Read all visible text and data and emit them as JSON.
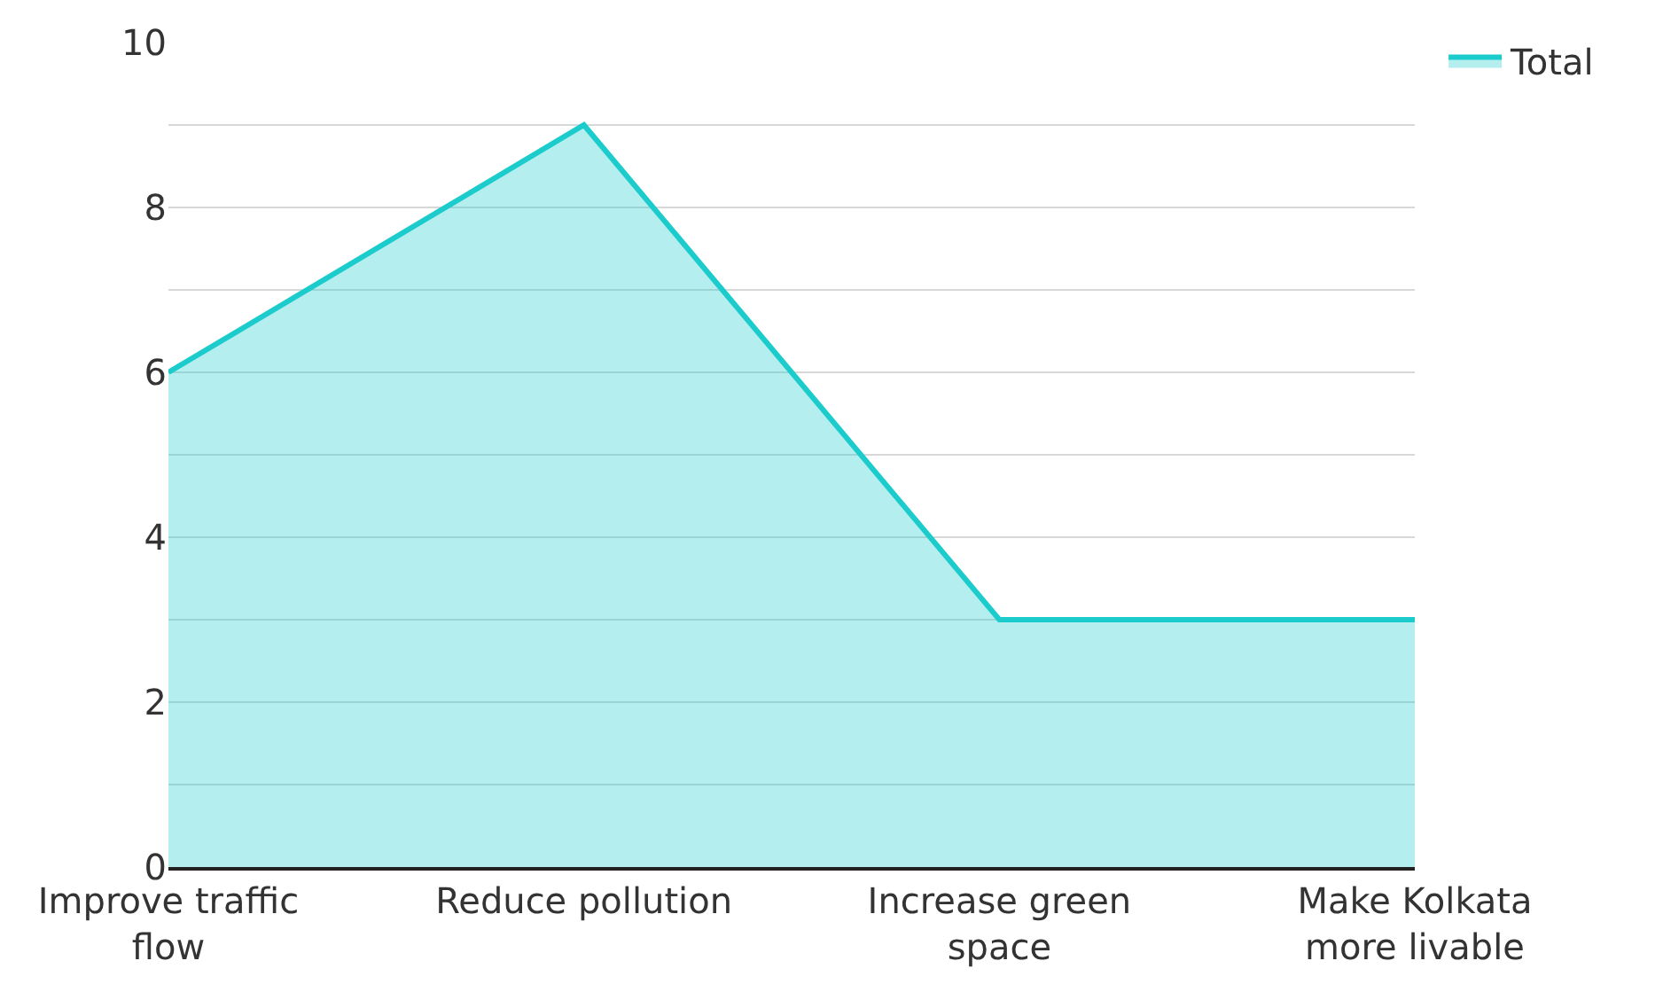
{
  "chart_data": {
    "type": "area",
    "categories": [
      "Improve traffic flow",
      "Reduce pollution",
      "Increase green space",
      "Make Kolkata more livable"
    ],
    "series": [
      {
        "name": "Total",
        "color": "#1ccccc",
        "values": [
          6,
          9,
          3,
          3
        ]
      }
    ],
    "ylim": [
      0,
      10
    ],
    "yticks": [
      0,
      {
        "value": 1,
        "label": null
      },
      2,
      {
        "value": 3,
        "label": null
      },
      4,
      {
        "value": 5,
        "label": null
      },
      6,
      {
        "value": 7,
        "label": null
      },
      8,
      {
        "value": 9,
        "label": null
      },
      10
    ],
    "grid": "y",
    "legend": "top right",
    "marker": "none",
    "line_style": "solid"
  }
}
